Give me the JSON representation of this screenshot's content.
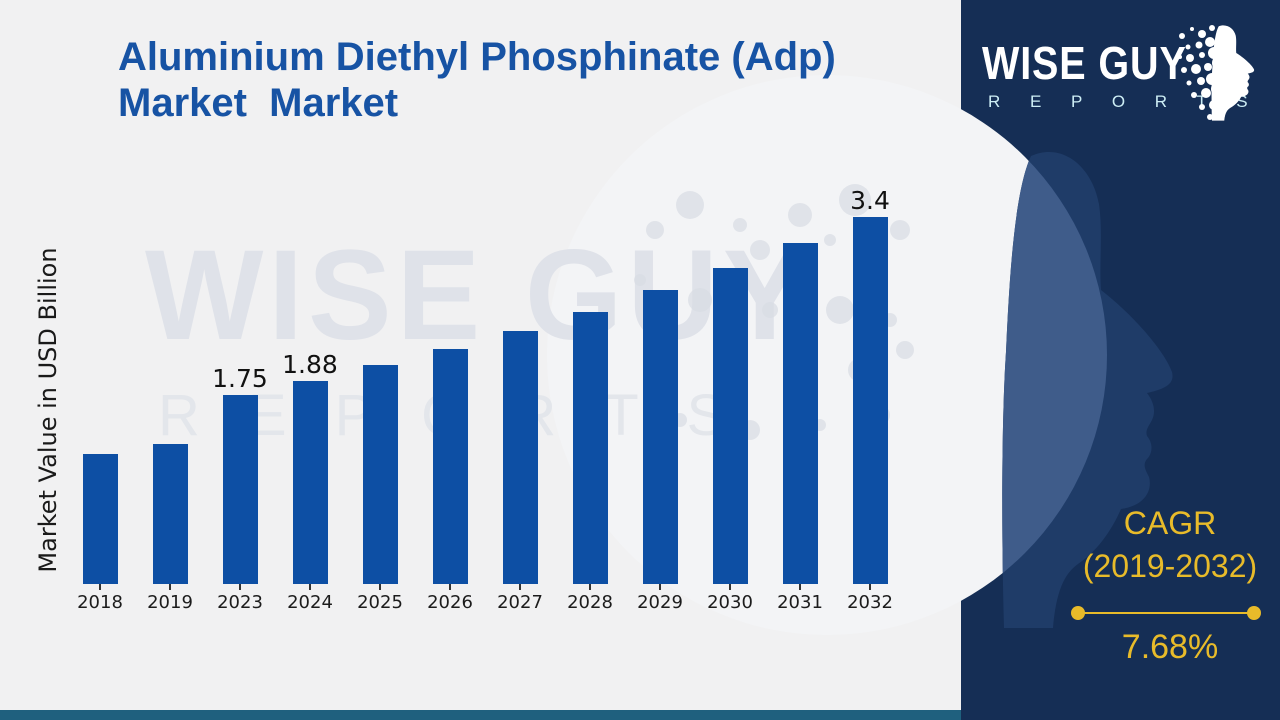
{
  "title": {
    "line1": "Aluminium Diethyl Phosphinate (Adp)",
    "line2": "Market  Market"
  },
  "logo": {
    "line1": "WISE GUY",
    "line2": "R E P O R T S"
  },
  "watermark": {
    "line1": "WISE GUY",
    "line2": "REPORTS"
  },
  "cagr": {
    "heading": "CAGR",
    "range": "(2019-2032)",
    "value": "7.68%"
  },
  "chart_data": {
    "type": "bar",
    "title": "Aluminium Diethyl Phosphinate (Adp) Market",
    "categories": [
      "2018",
      "2019",
      "2023",
      "2024",
      "2025",
      "2026",
      "2027",
      "2028",
      "2029",
      "2030",
      "2031",
      "2032"
    ],
    "values": [
      1.2,
      1.3,
      1.75,
      1.88,
      2.03,
      2.18,
      2.34,
      2.52,
      2.72,
      2.93,
      3.16,
      3.4
    ],
    "data_labels": {
      "2023": "1.75",
      "2024": "1.88",
      "2032": "3.4"
    },
    "xlabel": "",
    "ylabel": "Market Value in USD Billion",
    "ylim": [
      0,
      3.6
    ],
    "grid": false,
    "legend": "none"
  },
  "colors": {
    "bar": "#0d4fa4",
    "navy": "#152e55",
    "gold": "#e8bb2a",
    "teal": "#1f607e",
    "title_blue": "#1753a4"
  }
}
